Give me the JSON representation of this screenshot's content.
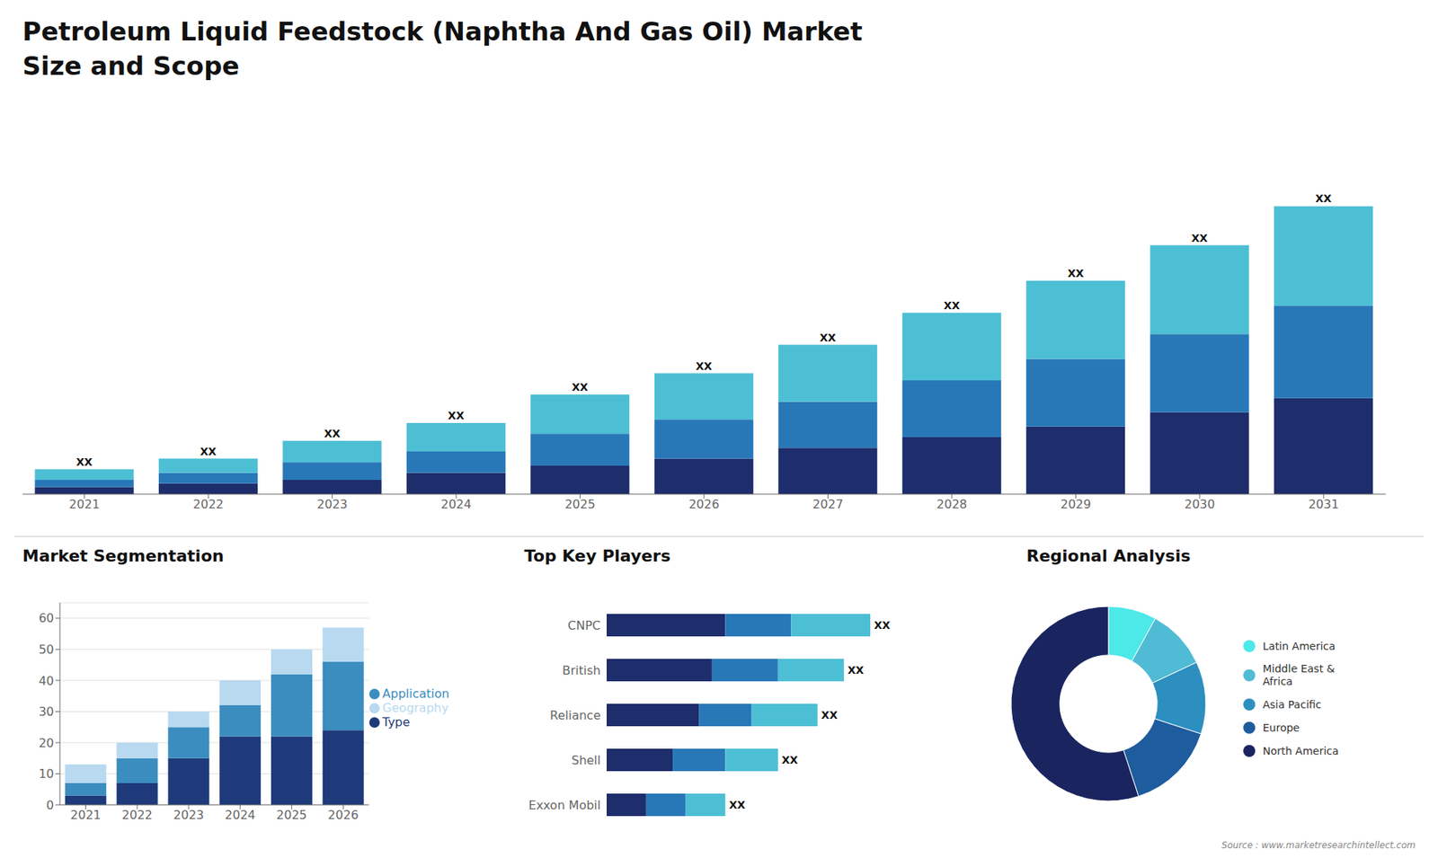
{
  "chart_data": [
    {
      "type": "bar",
      "title": "Petroleum Liquid Feedstock (Naphtha And Gas Oil) Market\nSize and Scope",
      "stacked": true,
      "categories": [
        "2021",
        "2022",
        "2023",
        "2024",
        "2025",
        "2026",
        "2027",
        "2028",
        "2029",
        "2030",
        "2031"
      ],
      "series": [
        {
          "color": "#1e2d6b",
          "values": [
            2,
            3,
            4,
            6,
            8,
            10,
            13,
            16,
            19,
            23,
            27
          ]
        },
        {
          "color": "#2878b8",
          "values": [
            2,
            3,
            5,
            6,
            9,
            11,
            13,
            16,
            19,
            22,
            26
          ]
        },
        {
          "color": "#4dbfd4",
          "values": [
            3,
            4,
            6,
            8,
            11,
            13,
            16,
            19,
            22,
            25,
            28
          ],
          "value_labels": [
            "XX",
            "XX",
            "XX",
            "XX",
            "XX",
            "XX",
            "XX",
            "XX",
            "XX",
            "XX",
            "XX"
          ]
        }
      ],
      "ylim": [
        0,
        105.3
      ],
      "tick_labels": "x",
      "grid": false,
      "annotations": [
        "Source : www.marketresearchintellect.com"
      ]
    },
    {
      "type": "bar",
      "title": "Market Segmentation",
      "stacked": true,
      "categories": [
        "2021",
        "2022",
        "2023",
        "2024",
        "2025",
        "2026"
      ],
      "series": [
        {
          "name": "Type",
          "color": "#1e3a7a",
          "values": [
            3,
            7,
            15,
            22,
            22,
            24
          ]
        },
        {
          "name": "Application",
          "color": "#3b8dbf",
          "values": [
            4,
            8,
            10,
            10,
            20,
            22
          ]
        },
        {
          "name": "Geography",
          "color": "#b8d9f0",
          "values": [
            6,
            5,
            5,
            8,
            8,
            11
          ]
        }
      ],
      "ylim": [
        0,
        65
      ],
      "yticks": [
        0,
        10,
        20,
        30,
        40,
        50,
        60
      ],
      "grid": true,
      "legend": "right"
    },
    {
      "type": "bar",
      "title": "Top Key Players",
      "orientation": "horizontal",
      "stacked": true,
      "categories": [
        "CNPC",
        "British",
        "Reliance",
        "Shell",
        "Exxon Mobil"
      ],
      "series": [
        {
          "color": "#1e2d6b",
          "values": [
            9,
            8,
            7,
            5,
            3
          ]
        },
        {
          "color": "#2878b8",
          "values": [
            5,
            5,
            4,
            4,
            3
          ]
        },
        {
          "color": "#4dbfd4",
          "values": [
            6,
            5,
            5,
            4,
            3
          ],
          "value_labels": [
            "XX",
            "XX",
            "XX",
            "XX",
            "XX"
          ]
        }
      ],
      "xlim": [
        0,
        25
      ],
      "tick_labels": "y",
      "grid": false
    },
    {
      "type": "pie",
      "title": "Regional Analysis",
      "categories": [
        "Latin America",
        "Middle East &\nAfrica",
        "Asia Pacific",
        "Europe",
        "North America"
      ],
      "values": [
        8,
        10,
        12,
        15,
        55
      ],
      "colors": [
        "#4de8e8",
        "#50bbd4",
        "#2d8fbf",
        "#1e5c9e",
        "#1a2560"
      ],
      "legend": "right"
    }
  ]
}
